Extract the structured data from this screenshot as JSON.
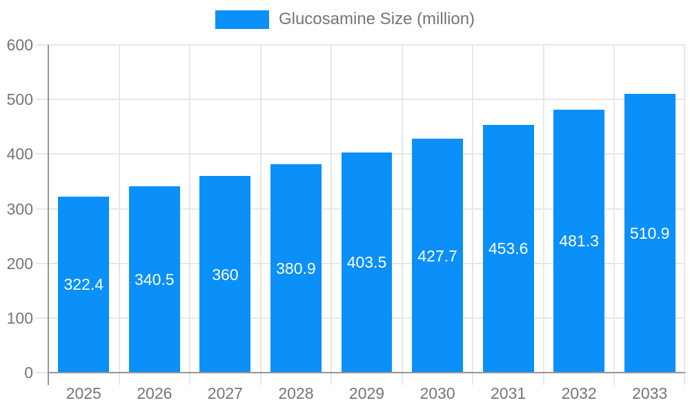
{
  "chart_data": {
    "type": "bar",
    "title": "",
    "legend": "Glucosamine Size (million)",
    "legend_position": "top",
    "categories": [
      "2025",
      "2026",
      "2027",
      "2028",
      "2029",
      "2030",
      "2031",
      "2032",
      "2033"
    ],
    "values": [
      322.4,
      340.5,
      360,
      380.9,
      403.5,
      427.7,
      453.6,
      481.3,
      510.9
    ],
    "value_labels": [
      "322.4",
      "340.5",
      "360",
      "380.9",
      "403.5",
      "427.7",
      "453.6",
      "481.3",
      "510.9"
    ],
    "xlabel": "",
    "ylabel": "",
    "ylim": [
      0,
      600
    ],
    "y_ticks": [
      0,
      100,
      200,
      300,
      400,
      500,
      600
    ],
    "y_tick_labels": [
      "0",
      "100",
      "200",
      "300",
      "400",
      "500",
      "600"
    ],
    "grid": true,
    "colors": {
      "bar": "#0a90f8",
      "bar_label": "#ffffff",
      "axis_text": "#757575",
      "axis_line": "#949494",
      "grid_line": "#e7e7e7",
      "background": "#ffffff"
    }
  }
}
